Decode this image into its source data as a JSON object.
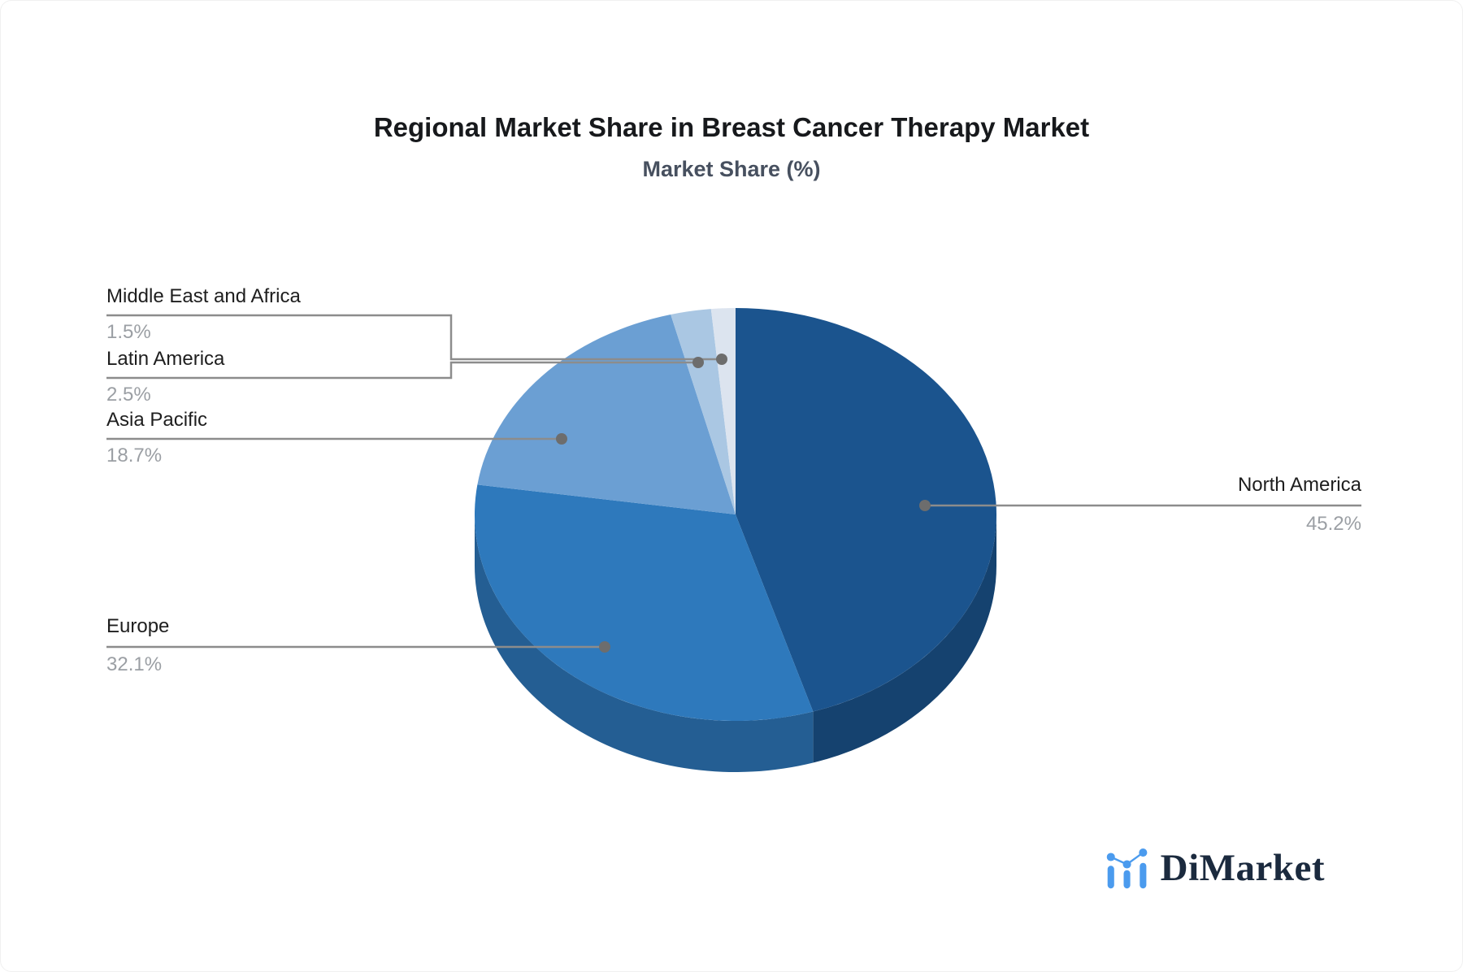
{
  "header": {
    "title": "Regional Market Share in Breast Cancer Therapy Market",
    "subtitle": "Market Share (%)"
  },
  "chart_data": {
    "type": "pie",
    "title": "Regional Market Share in Breast Cancer Therapy Market",
    "subtitle": "Market Share (%)",
    "unit": "%",
    "start_angle_deg": 0,
    "direction": "clockwise",
    "effect_3d": true,
    "legend": "none",
    "slices": [
      {
        "label": "North America",
        "value": 45.2,
        "display": "45.2%",
        "color": "#1b548e"
      },
      {
        "label": "Europe",
        "value": 32.1,
        "display": "32.1%",
        "color": "#2e79bc"
      },
      {
        "label": "Asia Pacific",
        "value": 18.7,
        "display": "18.7%",
        "color": "#6b9fd3"
      },
      {
        "label": "Latin America",
        "value": 2.5,
        "display": "2.5%",
        "color": "#aac7e3"
      },
      {
        "label": "Middle East and Africa",
        "value": 1.5,
        "display": "1.5%",
        "color": "#dce4ef"
      }
    ]
  },
  "branding": {
    "logo_text": "DiMarket",
    "logo_icon": "bar-chart-icon"
  },
  "colors": {
    "background": "#ffffff",
    "title_text": "#17191c",
    "subtitle_text": "#47505f",
    "slice_label_text": "#1e1e1e",
    "slice_value_text": "#9b9fa4",
    "connector_line": "#8c8c8c",
    "connector_dot": "#6d6d6d",
    "logo_text_color": "#1b2a3e",
    "logo_icon_color": "#4b9bee"
  }
}
